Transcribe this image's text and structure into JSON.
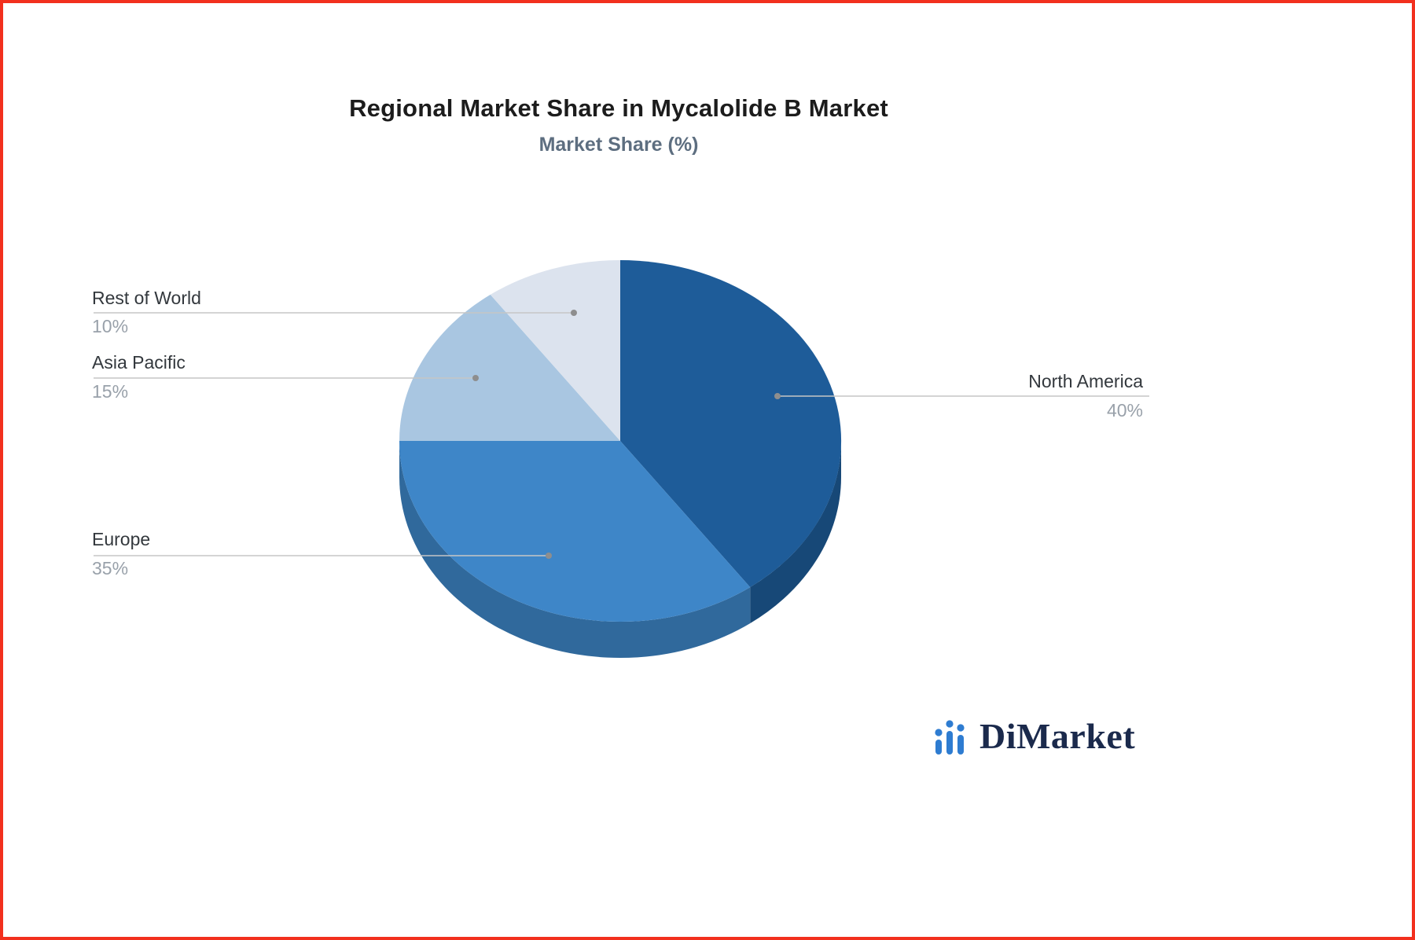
{
  "theme": {
    "background": "#ffffff",
    "frame": "#f2301e",
    "title": "#1c1c1c",
    "subtitle": "#5d6e80",
    "label": "#33383d",
    "value": "#99a1aa",
    "line": "#c6c6c6",
    "dot": "#8e8e8e",
    "logo_text": "#1b2a4c",
    "logo_icon": "#2e7cd1"
  },
  "chart_data": {
    "type": "pie",
    "title": "Regional Market Share in Mycalolide B Market",
    "subtitle": "Market Share (%)",
    "unit": "%",
    "style": "3d",
    "direction": "clockwise",
    "start_angle_deg": 0,
    "legend_position": "callout-labels",
    "slices": [
      {
        "label": "North America",
        "value": 40,
        "display": "40%",
        "color": "#1e5c99"
      },
      {
        "label": "Europe",
        "value": 35,
        "display": "35%",
        "color": "#3e86c8"
      },
      {
        "label": "Asia Pacific",
        "value": 15,
        "display": "15%",
        "color": "#a9c6e1"
      },
      {
        "label": "Rest of World",
        "value": 10,
        "display": "10%",
        "color": "#dce3ee"
      }
    ]
  },
  "branding": {
    "logo_text": "DiMarket"
  }
}
